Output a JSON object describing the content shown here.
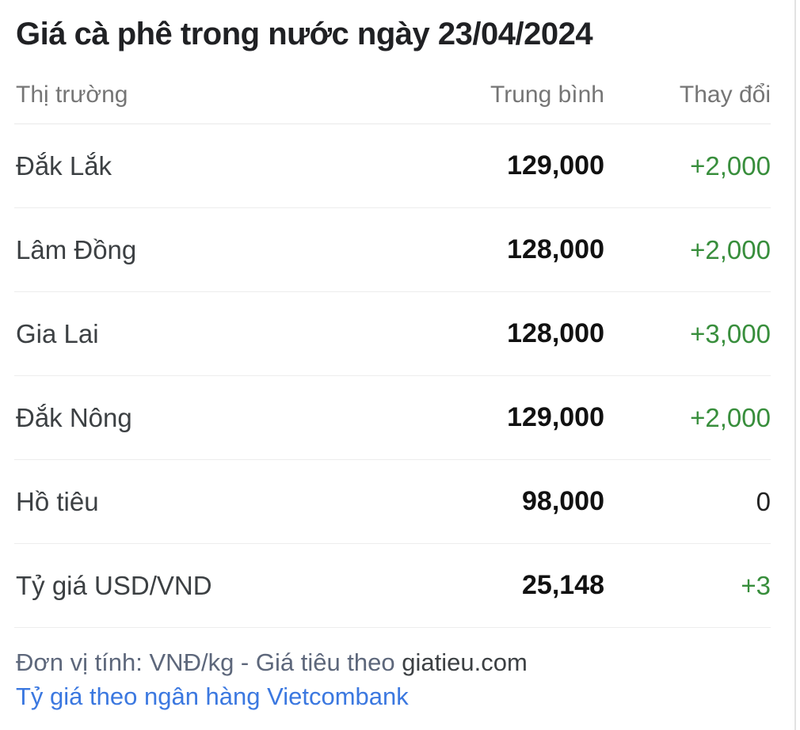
{
  "page": {
    "title": "Giá cà phê trong nước ngày 23/04/2024"
  },
  "table": {
    "columns": [
      "Thị trường",
      "Trung bình",
      "Thay đổi"
    ],
    "rows": [
      {
        "market": "Đắk Lắk",
        "average": "129,000",
        "change": "+2,000",
        "change_positive": true
      },
      {
        "market": "Lâm Đồng",
        "average": "128,000",
        "change": "+2,000",
        "change_positive": true
      },
      {
        "market": "Gia Lai",
        "average": "128,000",
        "change": "+3,000",
        "change_positive": true
      },
      {
        "market": "Đắk Nông",
        "average": "129,000",
        "change": "+2,000",
        "change_positive": true
      },
      {
        "market": "Hồ tiêu",
        "average": "98,000",
        "change": "0",
        "change_positive": false
      },
      {
        "market": "Tỷ giá USD/VND",
        "average": "25,148",
        "change": "+3",
        "change_positive": true
      }
    ]
  },
  "footer": {
    "unit_note": "Đơn vị tính: VNĐ/kg - Giá tiêu theo ",
    "source": "giatieu.com",
    "exchange_link": "Tỷ giá theo ngân hàng Vietcombank"
  },
  "colors": {
    "positive_change": "#388e3c",
    "link_blue": "#3b78e0",
    "header_gray": "#757575",
    "value_black": "#111111",
    "label_dark": "#3c4043",
    "note_slate": "#5d677b",
    "divider": "#ededed"
  }
}
